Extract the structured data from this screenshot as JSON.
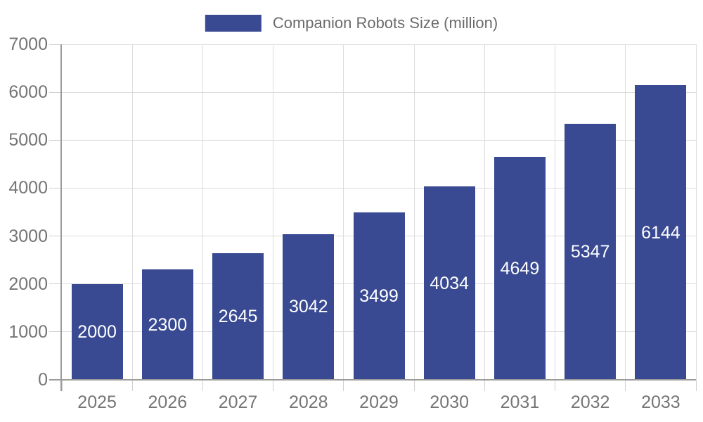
{
  "chart_data": {
    "type": "bar",
    "title": "Companion Robots Size (million)",
    "categories": [
      "2025",
      "2026",
      "2027",
      "2028",
      "2029",
      "2030",
      "2031",
      "2032",
      "2033"
    ],
    "values": [
      2000,
      2300,
      2645,
      3042,
      3499,
      4034,
      4649,
      5347,
      6144
    ],
    "xlabel": "",
    "ylabel": "",
    "ylim": [
      0,
      7000
    ],
    "ytick_interval": 1000,
    "ytick_labels": [
      "0",
      "1000",
      "2000",
      "3000",
      "4000",
      "5000",
      "6000",
      "7000"
    ],
    "grid": true,
    "legend_position": "top",
    "bar_value_labels_visible": true,
    "colors": {
      "bar": "#394A93",
      "bar_label": "#FFFFFF",
      "axis_text": "#757575",
      "legend_text": "#6B6B6B",
      "grid_line": "#DCDCDC",
      "tick_line": "#CFCFCF",
      "axis_line": "#9B9B9B",
      "background": "#FFFFFF"
    }
  }
}
